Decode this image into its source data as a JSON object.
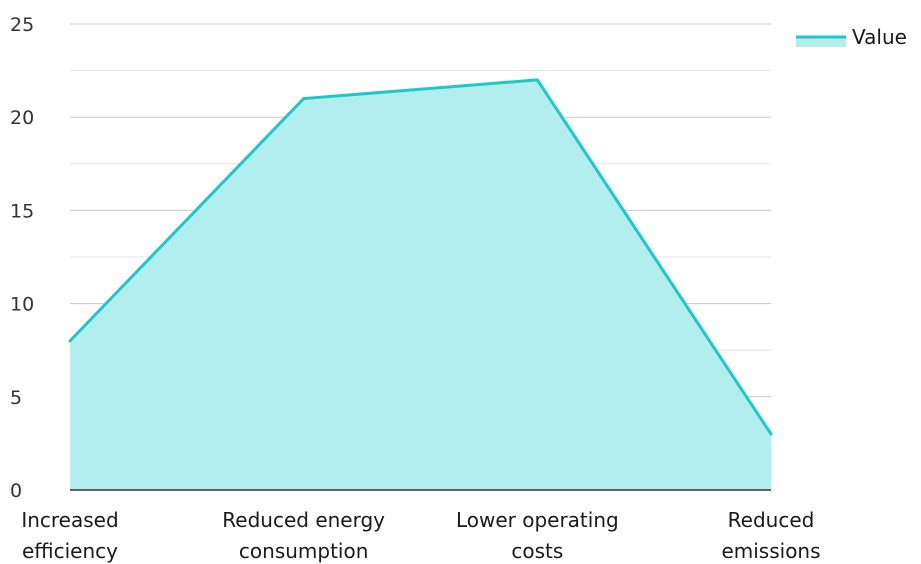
{
  "chart_data": {
    "type": "area",
    "categories": [
      [
        "Increased",
        "efficiency"
      ],
      [
        "Reduced energy",
        "consumption"
      ],
      [
        "Lower operating",
        "costs"
      ],
      [
        "Reduced",
        "emissions"
      ]
    ],
    "series": [
      {
        "name": "Value",
        "values": [
          8,
          21,
          22,
          3
        ]
      }
    ],
    "ylim": [
      0,
      25
    ],
    "yticks": [
      0,
      5,
      10,
      15,
      20,
      25
    ],
    "grid": true,
    "legend": "top-right",
    "colors": {
      "line": "#1ec8c8",
      "fill": "#b2eeee",
      "grid": "#cccccc",
      "axis": "#333333"
    }
  }
}
